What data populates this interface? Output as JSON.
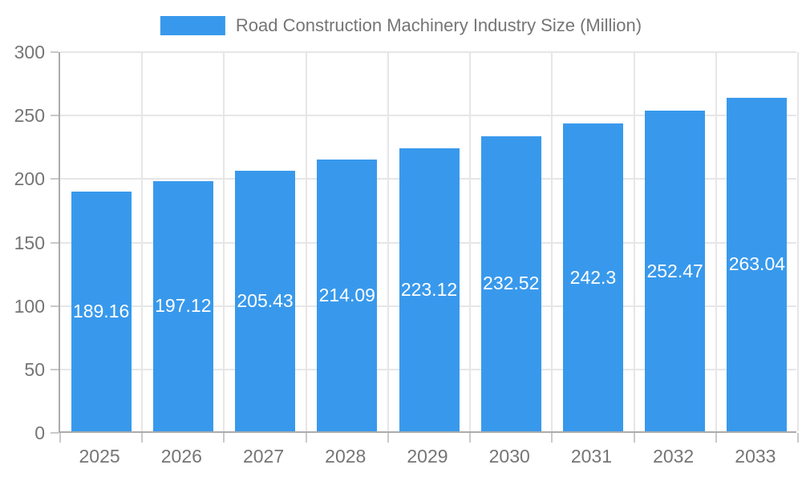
{
  "legend": {
    "label": "Road Construction Machinery Industry Size (Million)"
  },
  "colors": {
    "bar": "#3899EC",
    "axis": "#ababab",
    "grid": "#e6e6e6",
    "tick": "#c9c9c9",
    "text": "#757575",
    "bar_label": "#ffffff"
  },
  "chart_data": {
    "type": "bar",
    "title": "Road Construction Machinery Industry Size (Million)",
    "series_name": "Road Construction Machinery Industry Size (Million)",
    "categories": [
      "2025",
      "2026",
      "2027",
      "2028",
      "2029",
      "2030",
      "2031",
      "2032",
      "2033"
    ],
    "values": [
      189.16,
      197.12,
      205.43,
      214.09,
      223.12,
      232.52,
      242.3,
      252.47,
      263.04
    ],
    "xlabel": "",
    "ylabel": "",
    "ylim": [
      0,
      300
    ],
    "yticks": [
      0,
      50,
      100,
      150,
      200,
      250,
      300
    ],
    "grid": true,
    "legend_position": "top",
    "bar_label_position": "center"
  }
}
